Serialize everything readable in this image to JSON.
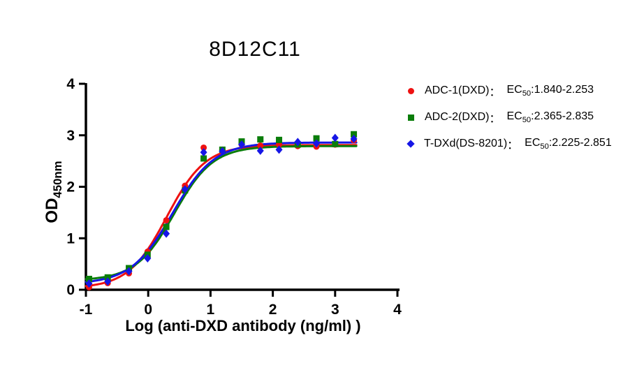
{
  "chart_data": {
    "type": "scatter",
    "subtype": "sigmoidal dose-response (4PL fit) with scatter markers",
    "title": "8D12C11",
    "xlabel": "Log (anti-DXD antibody (ng/ml) )",
    "ylabel_main": "OD",
    "ylabel_sub": "450nm",
    "xlim": [
      -1,
      4
    ],
    "ylim": [
      0,
      4
    ],
    "xticks": [
      -1,
      0,
      1,
      2,
      3,
      4
    ],
    "yticks": [
      0,
      1,
      2,
      3,
      4
    ],
    "grid": false,
    "legend_position": "right",
    "axis_color": "#000000",
    "x": [
      -0.95,
      -0.65,
      -0.31,
      -0.01,
      0.29,
      0.59,
      0.89,
      1.19,
      1.5,
      1.8,
      2.1,
      2.4,
      2.7,
      3.0,
      3.3
    ],
    "curve_x_end": 3.36,
    "series": [
      {
        "name": "ADC-1(DXD)",
        "sep": "：",
        "ec_prefix": "EC",
        "ec_sub": "50",
        "ec_range": ":1.840-2.253",
        "color": "#ee1111",
        "marker": "circle",
        "values": [
          0.05,
          0.13,
          0.32,
          0.74,
          1.35,
          2.02,
          2.76,
          2.72,
          2.82,
          2.8,
          2.82,
          2.79,
          2.78,
          2.82,
          2.9
        ],
        "fit": {
          "bottom": 0.03,
          "top": 2.81,
          "logec50": 0.3,
          "hill": 1.4
        }
      },
      {
        "name": "ADC-2(DXD)",
        "sep": "：",
        "ec_prefix": "EC",
        "ec_sub": "50",
        "ec_range": ":2.365-2.835",
        "color": "#0a7d0a",
        "marker": "square",
        "values": [
          0.21,
          0.24,
          0.42,
          0.68,
          1.22,
          1.93,
          2.55,
          2.72,
          2.88,
          2.92,
          2.91,
          2.82,
          2.94,
          2.83,
          3.02
        ],
        "fit": {
          "bottom": 0.18,
          "top": 2.79,
          "logec50": 0.42,
          "hill": 1.4
        }
      },
      {
        "name": "T-DXd(DS-8201)",
        "sep": "：",
        "ec_prefix": "EC",
        "ec_sub": "50",
        "ec_range": ":2.225-2.851",
        "color": "#1616e6",
        "marker": "diamond",
        "values": [
          0.12,
          0.16,
          0.36,
          0.61,
          1.09,
          1.95,
          2.67,
          2.69,
          2.82,
          2.7,
          2.72,
          2.87,
          2.84,
          2.95,
          2.93
        ],
        "fit": {
          "bottom": 0.11,
          "top": 2.86,
          "logec50": 0.39,
          "hill": 1.3
        }
      }
    ]
  }
}
